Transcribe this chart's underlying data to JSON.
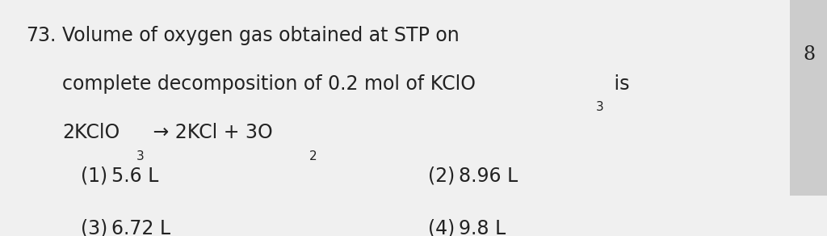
{
  "background_color": "#f0f0f0",
  "question_number": "73.",
  "question_line1": "Volume of oxygen gas obtained at STP on",
  "question_line2": "complete decomposition of 0.2 mol of KClO",
  "question_line2_sub": "3",
  "question_line2_end": " is",
  "equation": "2KClO",
  "equation_sub1": "3",
  "equation_arrow": "→",
  "equation_rest": "2KCl + 3O",
  "equation_sub2": "2",
  "option1_num": "(1)",
  "option1_val": "5.6 L",
  "option2_num": "(2)",
  "option2_val": "8.96 L",
  "option3_num": "(3)",
  "option3_val": "6.72 L",
  "option4_num": "(4)",
  "option4_val": "9.8 L",
  "right_number": "8",
  "text_color": "#222222",
  "font_size_question": 17,
  "font_size_equation": 17,
  "font_size_options": 17,
  "font_size_sub": 11,
  "right_box_color": "#cccccc"
}
